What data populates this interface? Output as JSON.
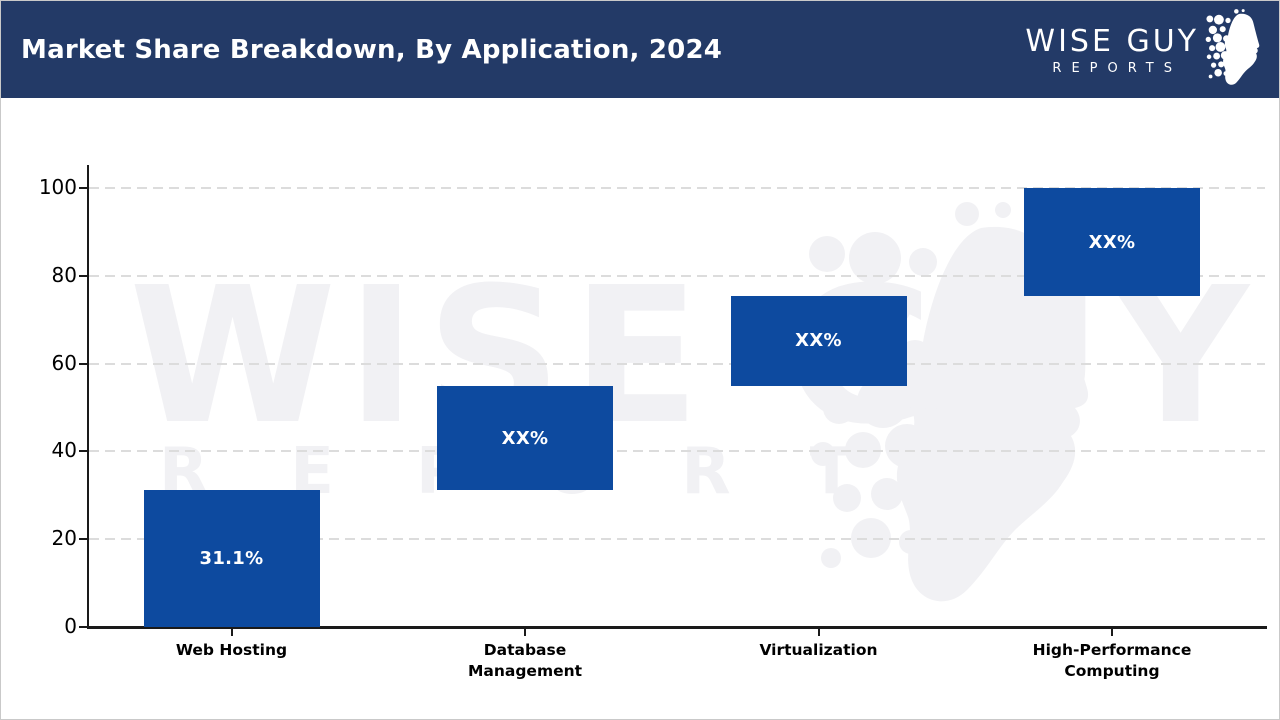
{
  "header": {
    "title": "Market Share Breakdown, By Application, 2024",
    "logo": {
      "line1": "WISE GUY",
      "line2": "REPORTS"
    }
  },
  "watermark": {
    "line1": "WISE GUY",
    "line2": "REPORTS"
  },
  "chart_data": {
    "type": "bar",
    "subtype": "waterfall-floating-bars",
    "title": "Market Share Breakdown, By Application, 2024",
    "categories": [
      "Web Hosting",
      "Database Management",
      "Virtualization",
      "High-Performance Computing"
    ],
    "category_label_lines": [
      [
        "Web Hosting"
      ],
      [
        "Database",
        "Management"
      ],
      [
        "Virtualization"
      ],
      [
        "High-Performance",
        "Computing"
      ]
    ],
    "segments": [
      {
        "category": "Web Hosting",
        "start": 0,
        "end": 31.1,
        "label": "31.1%"
      },
      {
        "category": "Database Management",
        "start": 31.1,
        "end": 55,
        "label": "XX%"
      },
      {
        "category": "Virtualization",
        "start": 55,
        "end": 75.3,
        "label": "XX%"
      },
      {
        "category": "High-Performance Computing",
        "start": 75.3,
        "end": 100,
        "label": "XX%"
      }
    ],
    "xlabel": "",
    "ylabel": "",
    "ylim": [
      0,
      100
    ],
    "yticks": [
      0,
      20,
      40,
      60,
      80,
      100
    ],
    "grid": "horizontal-dashed",
    "legend": "none",
    "colors": {
      "bar": "#0d4a9f",
      "bar_label": "#ffffff",
      "grid": "#dcdcdc",
      "axis": "#1a1a1a",
      "header_bg": "#233a67",
      "header_text": "#ffffff",
      "watermark": "#f1f1f4"
    }
  }
}
